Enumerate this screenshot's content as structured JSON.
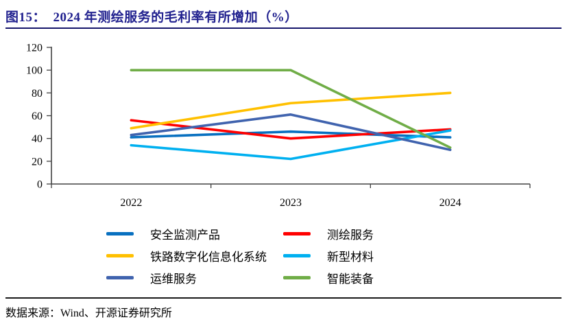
{
  "title": "图15：  2024 年测绘服务的毛利率有所增加（%）",
  "source": "数据来源：Wind、开源证券研究所",
  "colors": {
    "title_navy": "#21218F",
    "title_rule": "#16166b",
    "axis": "#404040",
    "label_text": "#000000"
  },
  "chart_data": {
    "type": "line",
    "categories": [
      "2022",
      "2023",
      "2024"
    ],
    "series": [
      {
        "name": "安全监测产品",
        "color": "#0870C0",
        "values": [
          41,
          46,
          41
        ]
      },
      {
        "name": "测绘服务",
        "color": "#FF0000",
        "values": [
          56,
          40,
          48
        ]
      },
      {
        "name": "铁路数字化信息化系统",
        "color": "#FFC000",
        "values": [
          49,
          71,
          80
        ]
      },
      {
        "name": "新型材料",
        "color": "#00B0F0",
        "values": [
          34,
          22,
          47
        ]
      },
      {
        "name": "运维服务",
        "color": "#4063AE",
        "values": [
          43,
          61,
          30
        ]
      },
      {
        "name": "智能装备",
        "color": "#70AD47",
        "values": [
          100,
          100,
          32
        ]
      }
    ],
    "ylim": [
      0,
      120
    ],
    "yticks": [
      0,
      20,
      40,
      60,
      80,
      100,
      120
    ],
    "grid": false,
    "legend_position": "bottom-two-columns",
    "legend_order_note": "row-major: left column 安全监测产品/铁路数字化信息化系统/运维服务, right column 测绘服务/新型材料/智能装备"
  }
}
